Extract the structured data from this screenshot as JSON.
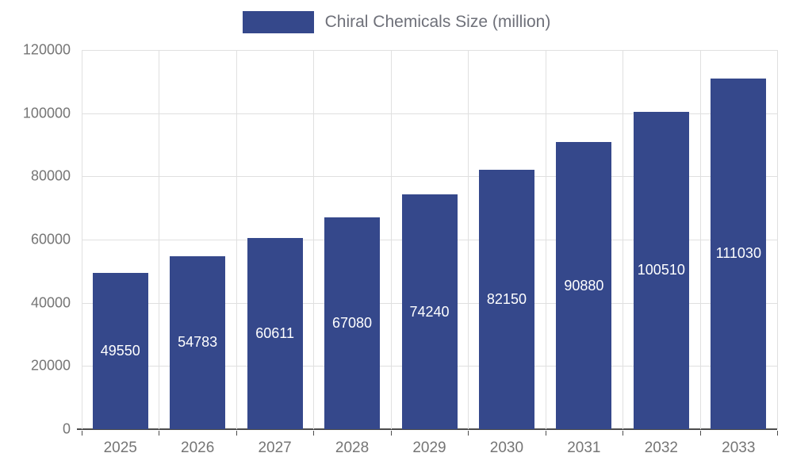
{
  "legend": {
    "label": "Chiral Chemicals Size (million)"
  },
  "colors": {
    "bar": "#35488b",
    "bar_label": "#ffffff",
    "axis_text": "#757575",
    "grid": "#e0e0e0",
    "axis_line": "#4d4d4d"
  },
  "chart_data": {
    "type": "bar",
    "title": "Chiral Chemicals Size (million)",
    "categories": [
      "2025",
      "2026",
      "2027",
      "2028",
      "2029",
      "2030",
      "2031",
      "2032",
      "2033"
    ],
    "values": [
      49550,
      54783,
      60611,
      67080,
      74240,
      82150,
      90880,
      100510,
      111030
    ],
    "xlabel": "",
    "ylabel": "",
    "ylim": [
      0,
      120000
    ],
    "y_ticks": [
      0,
      20000,
      40000,
      60000,
      80000,
      100000,
      120000
    ],
    "grid": true,
    "legend_position": "top",
    "value_labels": "inside-center"
  }
}
